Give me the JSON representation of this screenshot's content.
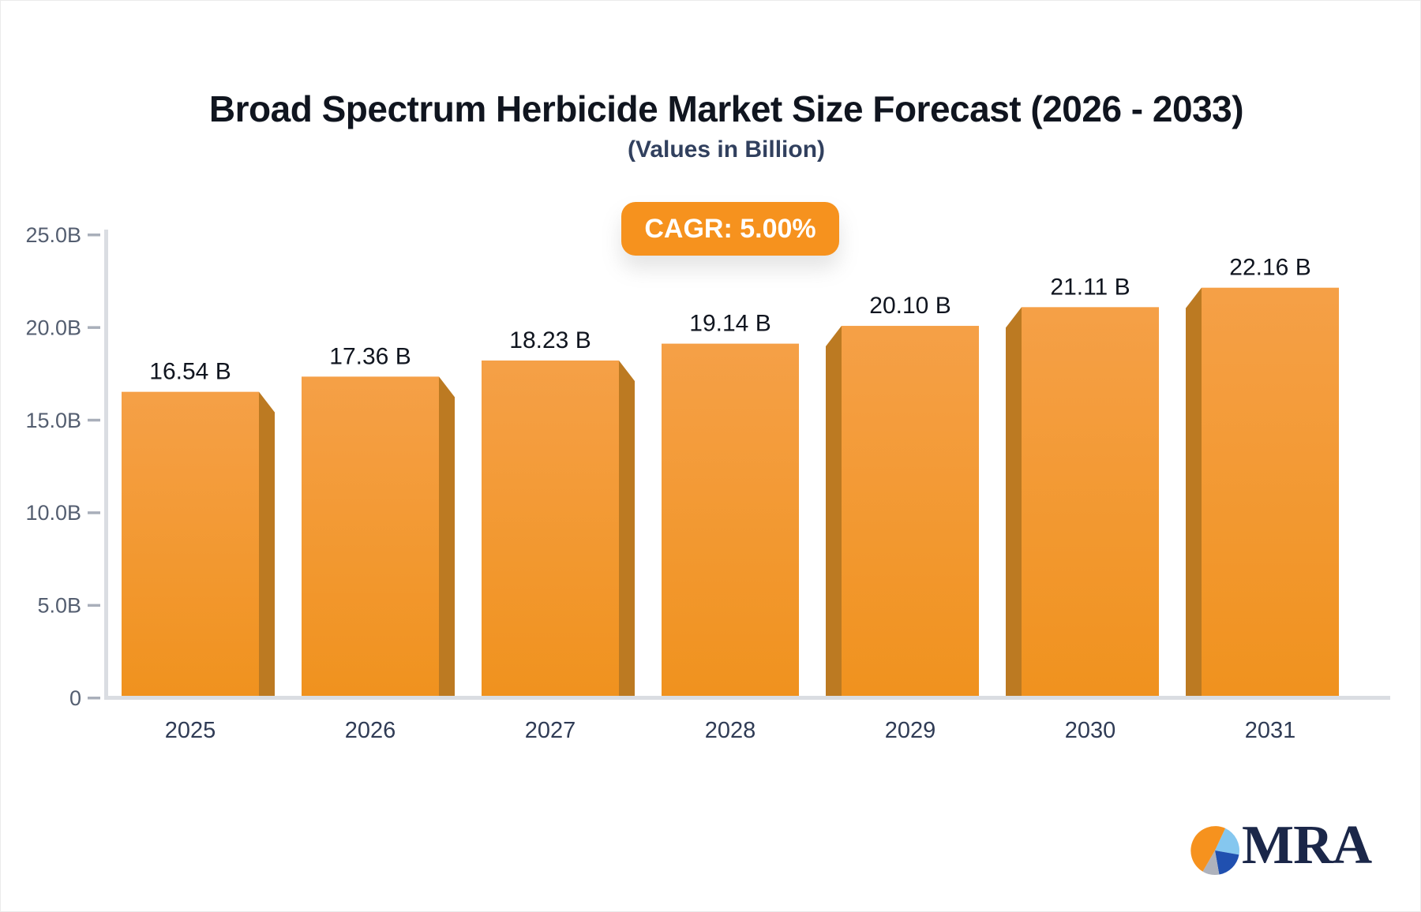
{
  "page": {
    "background": "#ffffff",
    "border_color": "#ebebeb"
  },
  "header": {
    "title": "Broad Spectrum Herbicide Market Size Forecast (2026 - 2033)",
    "subtitle": "(Values in Billion)",
    "title_color": "#10151f",
    "subtitle_color": "#31405e"
  },
  "badge": {
    "label": "CAGR: 5.00%",
    "background": "#f6921e",
    "text_color": "#ffffff"
  },
  "chart_data": {
    "type": "bar",
    "title": "Broad Spectrum Herbicide Market Size Forecast (2026 - 2033)",
    "subtitle": "(Values in Billion)",
    "categories": [
      "2025",
      "2026",
      "2027",
      "2028",
      "2029",
      "2030",
      "2031"
    ],
    "values": [
      16.54,
      17.36,
      18.23,
      19.14,
      20.1,
      21.11,
      22.16
    ],
    "value_labels": [
      "16.54 B",
      "17.36 B",
      "18.23 B",
      "19.14 B",
      "20.10 B",
      "21.11 B",
      "22.16 B"
    ],
    "cagr_label": "CAGR: 5.00%",
    "y_axis": {
      "tick_labels": [
        "25.0B",
        "20.0B",
        "15.0B",
        "10.0B",
        "5.0B",
        "0"
      ],
      "tick_values": [
        25,
        20,
        15,
        10,
        5,
        0
      ],
      "range": [
        0,
        25
      ]
    },
    "grid": false,
    "legend": false,
    "style": "3d-extruded-bars",
    "colors": {
      "bar_face_top": "#f5a047",
      "bar_face_bottom": "#f0921e",
      "bar_side": "#bc7a22",
      "axis_line": "#dadde2",
      "tick": "#a9afba",
      "tick_label": "#545e70",
      "category_label": "#2f3b55",
      "value_label": "#10151f"
    }
  },
  "logo": {
    "text": "MRA",
    "text_color": "#1b2749",
    "pie": {
      "orange": "#f6921e",
      "light_blue": "#85c7ef",
      "dark_blue": "#2050b0",
      "gray": "#aeb2bc"
    }
  }
}
